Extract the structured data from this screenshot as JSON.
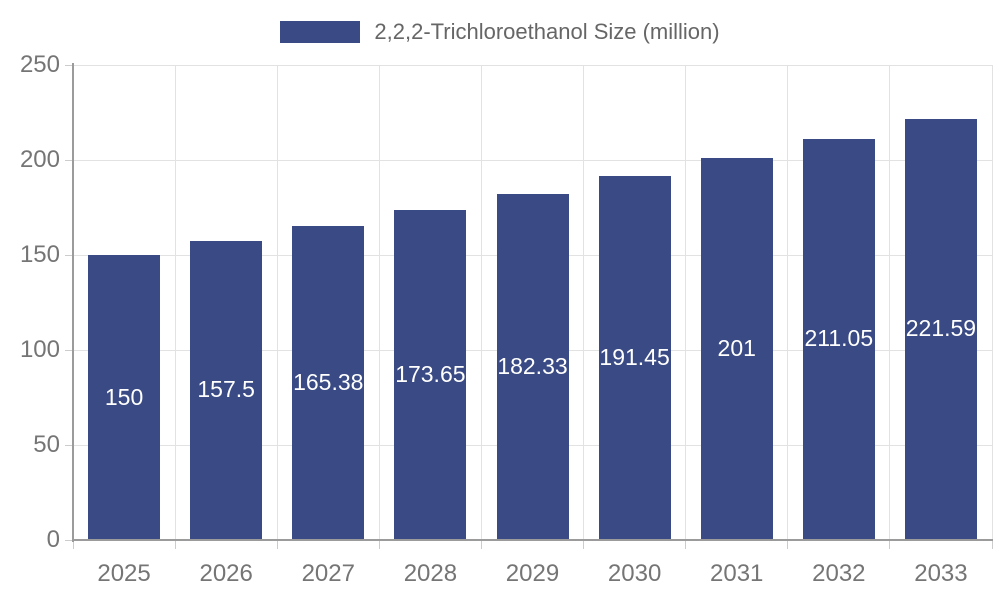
{
  "chart_data": {
    "type": "bar",
    "title": "",
    "legend": "2,2,2-Trichloroethanol Size (million)",
    "legend_position": "top-center",
    "categories": [
      "2025",
      "2026",
      "2027",
      "2028",
      "2029",
      "2030",
      "2031",
      "2032",
      "2033"
    ],
    "values": [
      150,
      157.5,
      165.38,
      173.65,
      182.33,
      191.45,
      201,
      211.05,
      221.59
    ],
    "value_labels": [
      "150",
      "157.5",
      "165.38",
      "173.65",
      "182.33",
      "191.45",
      "201",
      "211.05",
      "221.59"
    ],
    "xlabel": "",
    "ylabel": "",
    "ylim": [
      0,
      250
    ],
    "yticks": [
      0,
      50,
      100,
      150,
      200,
      250
    ],
    "grid": "on",
    "colors": {
      "bar": "#394a84",
      "grid": "#e2e2e2",
      "axis": "#9b9b9b",
      "tick": "#cccccc",
      "tick_label": "#757575",
      "legend_text": "#666666",
      "value_label": "#ffffff",
      "background": "#ffffff"
    }
  }
}
